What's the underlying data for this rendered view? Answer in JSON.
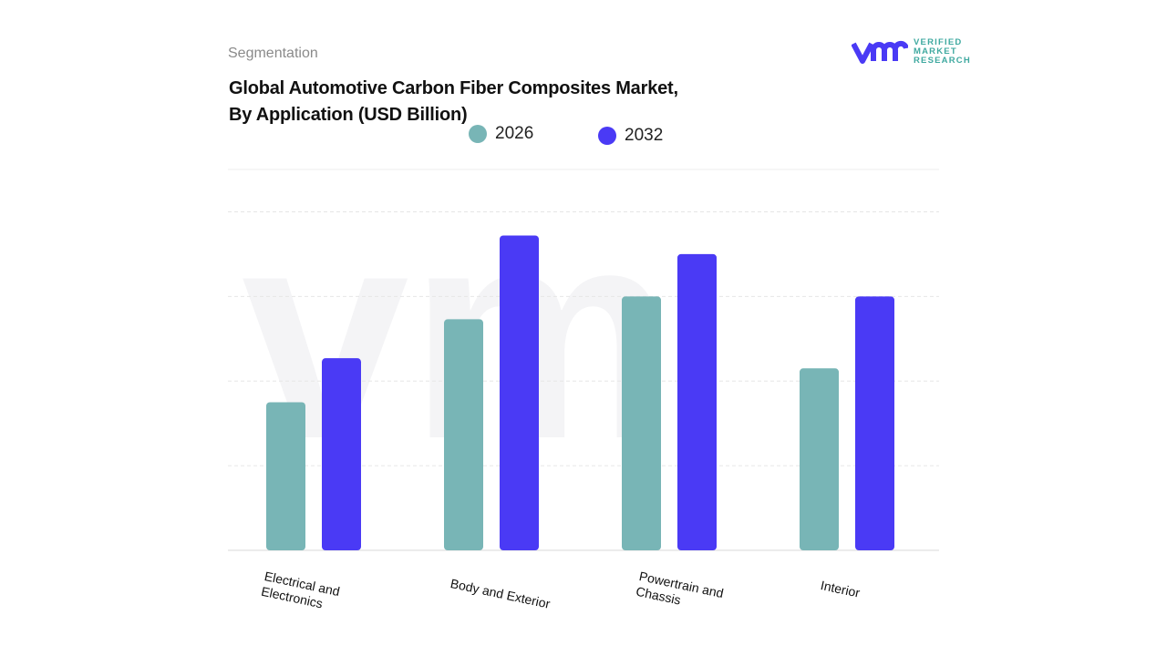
{
  "header": {
    "section": "Segmentation",
    "title_line1": "Global Automotive Carbon Fiber Composites Market,",
    "title_line2": "By Application (USD Billion)"
  },
  "logo": {
    "mark": "vmr",
    "line1": "VERIFIED",
    "line2": "MARKET",
    "line3": "RESEARCH"
  },
  "chart_data": {
    "type": "bar",
    "title": "Global Automotive Carbon Fiber Composites Market, By Application (USD Billion)",
    "categories": [
      "Electrical and Electronics",
      "Body and Exterior",
      "Powertrain and Chassis",
      "Interior"
    ],
    "series": [
      {
        "name": "2026",
        "color": "#78b5b6",
        "values": [
          1.75,
          2.73,
          3.0,
          2.15
        ]
      },
      {
        "name": "2032",
        "color": "#4a3af5",
        "values": [
          2.27,
          3.72,
          3.5,
          3.0
        ]
      }
    ],
    "ylim": [
      0,
      4.5
    ],
    "grid": true,
    "legend": "top-center",
    "xlabel": "",
    "ylabel": ""
  }
}
